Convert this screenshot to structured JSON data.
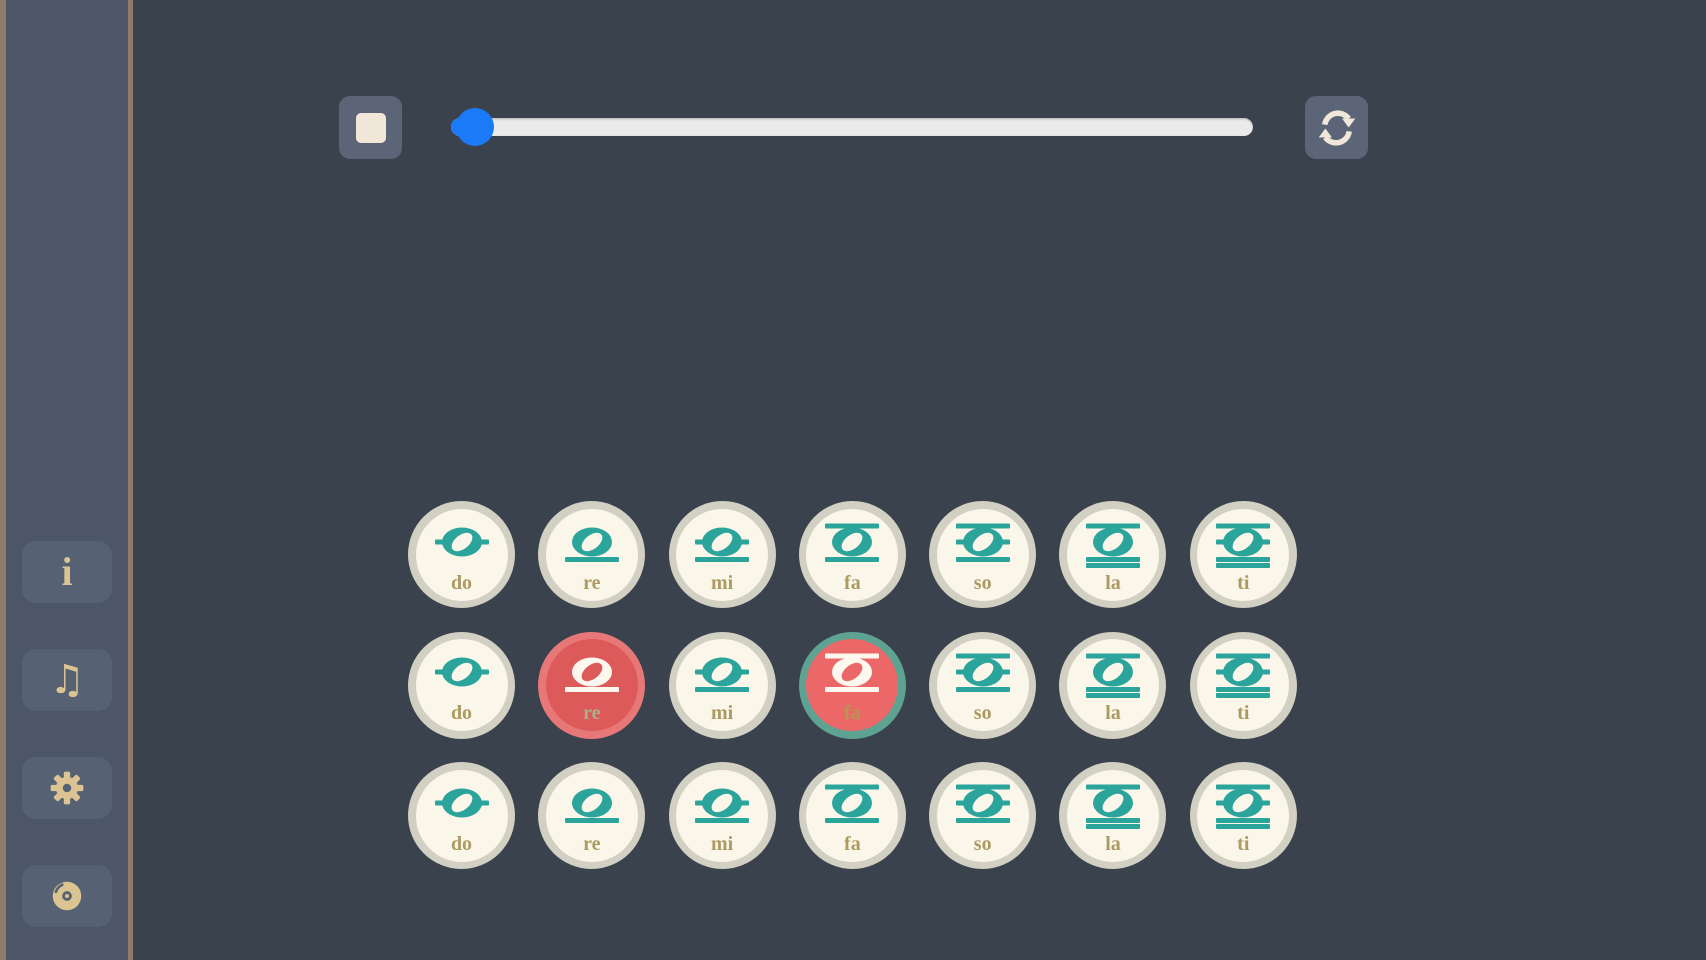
{
  "app": {
    "background": "#3a424d"
  },
  "palette": {
    "sidebar_bg": "#4d5667",
    "sidebar_border": "#8f7c6c",
    "sidebar_button_bg": "#566173",
    "sidebar_icon": "#dcc492",
    "transport_button_bg": "#5b6577",
    "transport_icon_cream": "#f0e7d8",
    "slider_track": "#ebebeb",
    "slider_accent_blue": "#1a7af8",
    "states": {
      "default": {
        "ring": "#d2cfc3",
        "fill": "#fbf6ea",
        "note": "#2ba49c",
        "label": "#ab9a61"
      },
      "active-red": {
        "ring": "#e87878",
        "fill": "#dd5a5a",
        "note": "#fdf8ef",
        "label": "#a9b08f"
      },
      "active-red-teal": {
        "ring": "#5ea292",
        "fill": "#ec6868",
        "note": "#fdf8ef",
        "label": "#b3984f"
      }
    }
  },
  "sidebar": {
    "items": [
      {
        "id": "info",
        "icon": "info-icon",
        "glyph": "i"
      },
      {
        "id": "music",
        "icon": "music-note-icon",
        "glyph": "♫"
      },
      {
        "id": "settings",
        "icon": "gear-icon"
      },
      {
        "id": "sound",
        "icon": "disc-icon"
      }
    ]
  },
  "transport": {
    "stop_button": {
      "icon": "stop-square-icon"
    },
    "progress_slider": {
      "value_percent": 3,
      "min": 0,
      "max": 100
    },
    "refresh_button": {
      "icon": "refresh-arrows-icon"
    }
  },
  "board": {
    "solfege_columns": [
      "do",
      "re",
      "mi",
      "fa",
      "so",
      "la",
      "ti"
    ],
    "glyph_lines": {
      "do": [
        "mid"
      ],
      "re": [
        "below"
      ],
      "mi": [
        "mid",
        "below"
      ],
      "fa": [
        "above",
        "below"
      ],
      "so": [
        "above",
        "mid",
        "below"
      ],
      "la": [
        "above",
        "below",
        "below2"
      ],
      "ti": [
        "above",
        "mid",
        "below",
        "below2"
      ]
    },
    "rows": [
      {
        "cells": [
          {
            "label": "do",
            "state": "default"
          },
          {
            "label": "re",
            "state": "default"
          },
          {
            "label": "mi",
            "state": "default"
          },
          {
            "label": "fa",
            "state": "default"
          },
          {
            "label": "so",
            "state": "default"
          },
          {
            "label": "la",
            "state": "default"
          },
          {
            "label": "ti",
            "state": "default"
          }
        ]
      },
      {
        "cells": [
          {
            "label": "do",
            "state": "default"
          },
          {
            "label": "re",
            "state": "active-red"
          },
          {
            "label": "mi",
            "state": "default"
          },
          {
            "label": "fa",
            "state": "active-red-teal"
          },
          {
            "label": "so",
            "state": "default"
          },
          {
            "label": "la",
            "state": "default"
          },
          {
            "label": "ti",
            "state": "default"
          }
        ]
      },
      {
        "cells": [
          {
            "label": "do",
            "state": "default"
          },
          {
            "label": "re",
            "state": "default"
          },
          {
            "label": "mi",
            "state": "default"
          },
          {
            "label": "fa",
            "state": "default"
          },
          {
            "label": "so",
            "state": "default"
          },
          {
            "label": "la",
            "state": "default"
          },
          {
            "label": "ti",
            "state": "default"
          }
        ]
      }
    ]
  }
}
